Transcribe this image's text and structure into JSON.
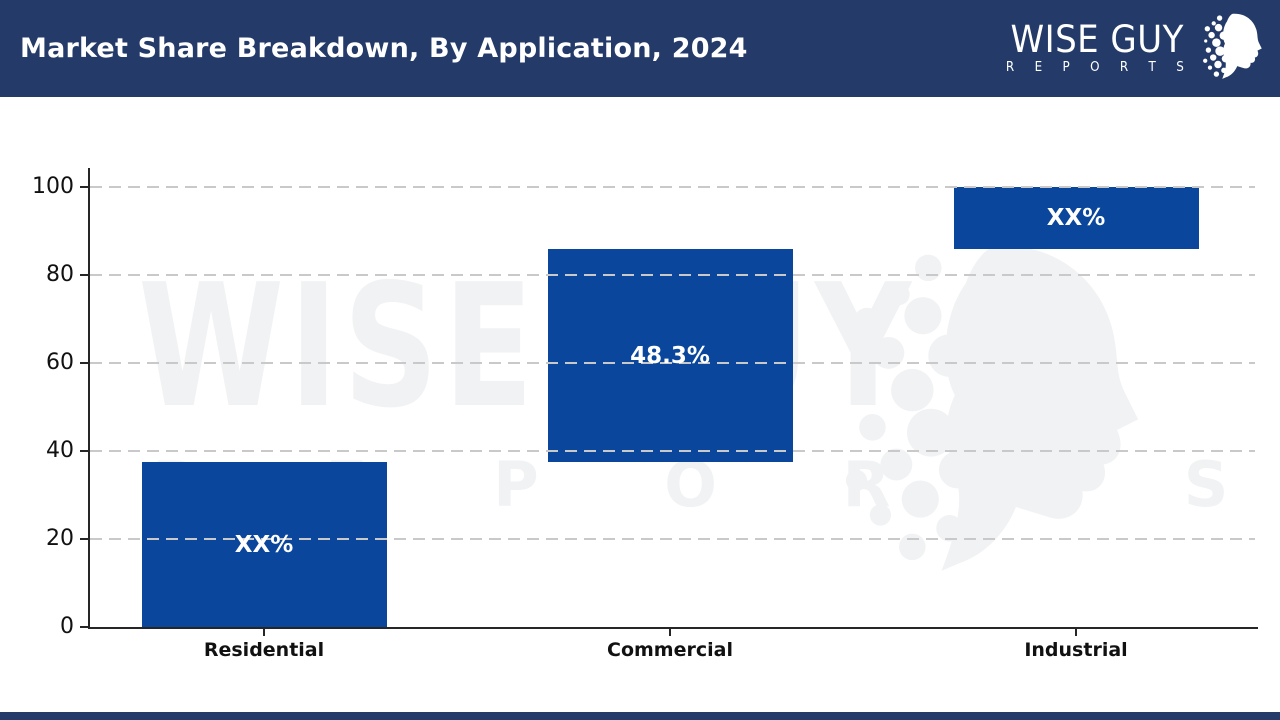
{
  "header": {
    "title": "Market Share Breakdown, By Application, 2024",
    "logo": {
      "wordmark": "WISE GUY",
      "subtext": "R E P O R T S"
    }
  },
  "watermark": {
    "wordmark": "WISE GUY",
    "subtext": "R E P O R T S"
  },
  "colors": {
    "header_navy": "#243a69",
    "bar_blue": "#0a469b",
    "grid_gray": "#c9c9c9",
    "watermark_gray": "#f1f2f4",
    "axis_black": "#262626"
  },
  "chart_data": {
    "type": "bar",
    "subtype": "stacked-waterfall-segments",
    "title": "Market Share Breakdown, By Application, 2024",
    "categories": [
      "Residential",
      "Commercial",
      "Industrial"
    ],
    "segments": [
      {
        "category": "Residential",
        "label": "XX%",
        "start": 0,
        "end": 37.5
      },
      {
        "category": "Commercial",
        "label": "48.3%",
        "start": 37.5,
        "end": 85.8
      },
      {
        "category": "Industrial",
        "label": "XX%",
        "start": 85.8,
        "end": 100
      }
    ],
    "bar_labels": [
      "XX%",
      "48.3%",
      "XX%"
    ],
    "ylim": [
      0,
      100
    ],
    "yticks": [
      0,
      20,
      40,
      60,
      80,
      100
    ],
    "xlabel": "",
    "ylabel": "",
    "grid": "horizontal-dashed",
    "legend": "none"
  }
}
